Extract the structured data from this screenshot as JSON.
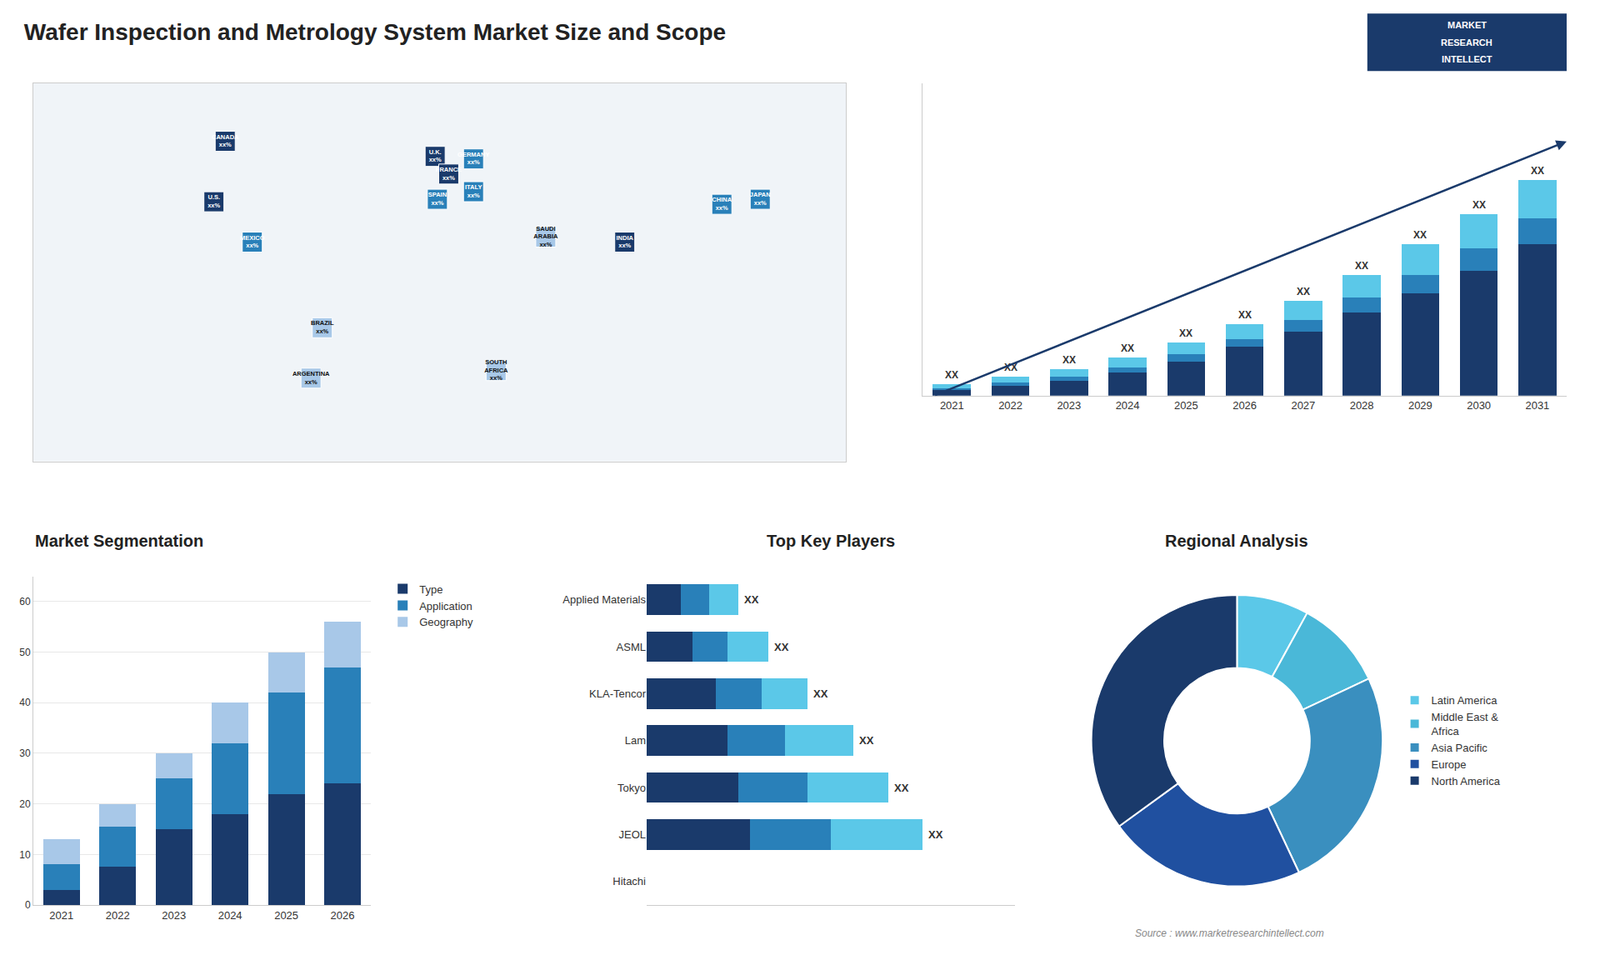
{
  "title": "Wafer Inspection and Metrology System Market Size and Scope",
  "annotations": [
    "MARKET",
    "RESEARCH",
    "INTELLECT",
    "Source : www.marketresearchintellect.com"
  ],
  "chart_data": [
    {
      "type": "map",
      "categories": [
        "U.S.\nxx%",
        "CANADA\nxx%",
        "MEXICO\nxx%",
        "BRAZIL\nxx%",
        "ARGENTINA\nxx%",
        "U.K.\nxx%",
        "FRANCE\nxx%",
        "GERMANY\nxx%",
        "SPAIN\nxx%",
        "ITALY\nxx%",
        "SAUDI\nARABIA\nxx%",
        "SOUTH\nAFRICA\nxx%",
        "INDIA\nxx%",
        "CHINA\nxx%",
        "JAPAN\nxx%"
      ],
      "x": [
        -100,
        -95,
        -83,
        -52,
        -57,
        -2,
        4,
        15,
        -1,
        15,
        47,
        25,
        82,
        125,
        142
      ],
      "values": [
        38,
        62,
        22,
        -12,
        -32,
        56,
        49,
        55,
        39,
        42,
        24,
        -29,
        22,
        37,
        39
      ],
      "colors": [
        "#1a3a6b",
        "#1a3a6b",
        "#2980b9",
        "#a8c8e8",
        "#a8c8e8",
        "#1a3a6b",
        "#1a3a6b",
        "#2980b9",
        "#2980b9",
        "#2980b9",
        "#a8c8e8",
        "#a8c8e8",
        "#1a3a6b",
        "#2980b9",
        "#2980b9"
      ],
      "xlim": [
        -180,
        180
      ],
      "ylim": [
        -65,
        85
      ],
      "xticks": [],
      "yticks": [],
      "tick_labels": false,
      "grid": false
    },
    {
      "type": "bar",
      "stacked": true,
      "categories": [
        "2021",
        "2022",
        "2023",
        "2024",
        "2025",
        "2026",
        "2027",
        "2028",
        "2029",
        "2030",
        "2031"
      ],
      "series": [
        {
          "color": "#1a3a6b",
          "values": [
            1.5,
            2.5,
            4,
            6,
            9,
            13,
            17,
            22,
            27,
            33,
            40
          ]
        },
        {
          "color": "#2980b9",
          "values": [
            0.5,
            1,
            1,
            1.5,
            2,
            2,
            3,
            4,
            5,
            6,
            7
          ]
        },
        {
          "color": "#5bc8e8",
          "values": [
            1,
            1.5,
            2,
            2.5,
            3,
            4,
            5,
            6,
            8,
            9,
            10
          ]
        }
      ],
      "ylim": [
        0,
        82.65
      ],
      "yticks": [],
      "tick_labels": "x",
      "grid": false,
      "annotations": [
        {
          "category": "2021",
          "text": "XX"
        },
        {
          "category": "2022",
          "text": "XX"
        },
        {
          "category": "2023",
          "text": "XX"
        },
        {
          "category": "2024",
          "text": "XX"
        },
        {
          "category": "2025",
          "text": "XX"
        },
        {
          "category": "2026",
          "text": "XX"
        },
        {
          "category": "2027",
          "text": "XX"
        },
        {
          "category": "2028",
          "text": "XX"
        },
        {
          "category": "2029",
          "text": "XX"
        },
        {
          "category": "2030",
          "text": "XX"
        },
        {
          "category": "2031",
          "text": "XX"
        }
      ]
    },
    {
      "type": "bar",
      "stacked": true,
      "title": "Market Segmentation",
      "categories": [
        "2021",
        "2022",
        "2023",
        "2024",
        "2025",
        "2026"
      ],
      "series": [
        {
          "name": "Type",
          "color": "#1a3a6b",
          "values": [
            3,
            7.5,
            15,
            18,
            22,
            24
          ]
        },
        {
          "name": "Application",
          "color": "#2980b9",
          "values": [
            5,
            8,
            10,
            14,
            20,
            23
          ]
        },
        {
          "name": "Geography",
          "color": "#a8c8e8",
          "values": [
            5,
            4.5,
            5,
            8,
            8,
            9
          ]
        }
      ],
      "ylim": [
        0,
        65
      ],
      "yticks": [
        0,
        10,
        20,
        30,
        40,
        50,
        60
      ],
      "grid": true,
      "legend": "right"
    },
    {
      "type": "bar",
      "stacked": true,
      "orientation": "horizontal",
      "title": "Top Key Players",
      "categories": [
        "Hitachi",
        "JEOL",
        "Tokyo",
        "Lam",
        "KLA-Tencor",
        "ASML",
        "Applied Materials"
      ],
      "series": [
        {
          "color": "#1a3a6b",
          "values": [
            0,
            4.5,
            4.0,
            3.5,
            3.0,
            2.0,
            1.5
          ]
        },
        {
          "color": "#2980b9",
          "values": [
            0,
            3.5,
            3.0,
            2.5,
            2.0,
            1.5,
            1.2
          ]
        },
        {
          "color": "#5bc8e8",
          "values": [
            0,
            4.0,
            3.5,
            3.0,
            2.0,
            1.8,
            1.3
          ]
        }
      ],
      "xlim": [
        0,
        16
      ],
      "xticks": [],
      "tick_labels": "y",
      "grid": false,
      "annotations": [
        {
          "category": "JEOL",
          "text": "XX"
        },
        {
          "category": "Tokyo",
          "text": "XX"
        },
        {
          "category": "Lam",
          "text": "XX"
        },
        {
          "category": "KLA-Tencor",
          "text": "XX"
        },
        {
          "category": "ASML",
          "text": "XX"
        },
        {
          "category": "Applied Materials",
          "text": "XX"
        }
      ]
    },
    {
      "type": "donut",
      "title": "Regional Analysis",
      "categories": [
        "Latin America",
        "Middle East &\nAfrica",
        "Asia Pacific",
        "Europe",
        "North America"
      ],
      "values": [
        8,
        10,
        25,
        22,
        35
      ],
      "colors": [
        "#5bc8e8",
        "#4ab8d8",
        "#3a8fbf",
        "#2050a0",
        "#1a3a6b"
      ],
      "legend": "right"
    }
  ]
}
